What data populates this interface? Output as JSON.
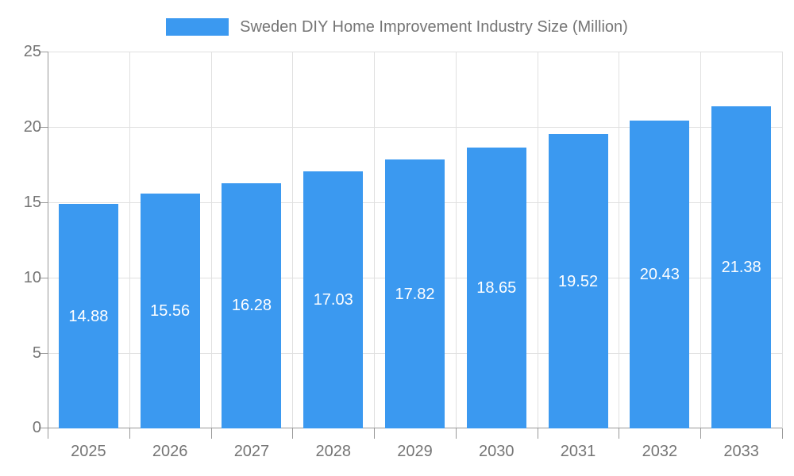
{
  "chart_data": {
    "type": "bar",
    "title": "Sweden DIY Home Improvement Industry Size (Million)",
    "legend_entries": [
      "Sweden DIY Home Improvement Industry Size (Million)"
    ],
    "legend_position": "top",
    "categories": [
      "2025",
      "2026",
      "2027",
      "2028",
      "2029",
      "2030",
      "2031",
      "2032",
      "2033"
    ],
    "values": [
      14.88,
      15.56,
      16.28,
      17.03,
      17.82,
      18.65,
      19.52,
      20.43,
      21.38
    ],
    "value_labels": [
      "14.88",
      "15.56",
      "16.28",
      "17.03",
      "17.82",
      "18.65",
      "19.52",
      "20.43",
      "21.38"
    ],
    "value_label_position": "inside-center",
    "xlabel": "",
    "ylabel": "",
    "ylim": [
      0,
      25
    ],
    "yticks": [
      0,
      5,
      10,
      15,
      20,
      25
    ],
    "grid": true,
    "colors": {
      "bar": "#3B99F0",
      "value_label": "#FFFFFF",
      "grid_line": "#E0E0E0",
      "axis_line": "#999999",
      "tick_label": "#757575",
      "title": "#757575",
      "background": "#FFFFFF"
    }
  }
}
